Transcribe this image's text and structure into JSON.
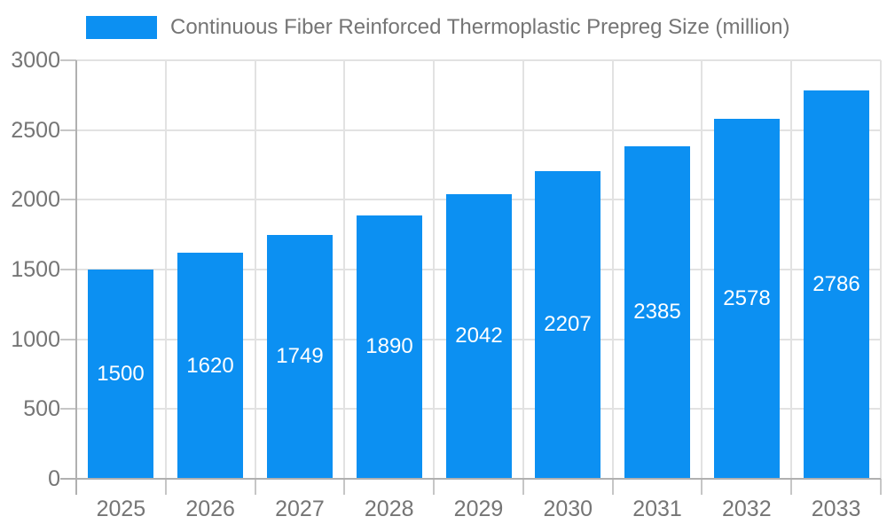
{
  "legend": {
    "label": "Continuous Fiber Reinforced Thermoplastic Prepreg Size (million)"
  },
  "chart_data": {
    "type": "bar",
    "title": "Continuous Fiber Reinforced Thermoplastic Prepreg Size (million)",
    "categories": [
      "2025",
      "2026",
      "2027",
      "2028",
      "2029",
      "2030",
      "2031",
      "2032",
      "2033"
    ],
    "values": [
      1500,
      1620,
      1749,
      1890,
      2042,
      2207,
      2385,
      2578,
      2786
    ],
    "xlabel": "",
    "ylabel": "",
    "ylim": [
      0,
      3000
    ],
    "yticks": [
      0,
      500,
      1000,
      1500,
      2000,
      2500,
      3000
    ],
    "grid": true,
    "legend_position": "top-left",
    "bar_labels_inside": true,
    "colors": {
      "bar": "#0c90f2",
      "bar_label_text": "#ffffff",
      "axis_text": "#757575",
      "axis_line": "#b0b0b0",
      "gridline": "#e2e2e2"
    }
  }
}
